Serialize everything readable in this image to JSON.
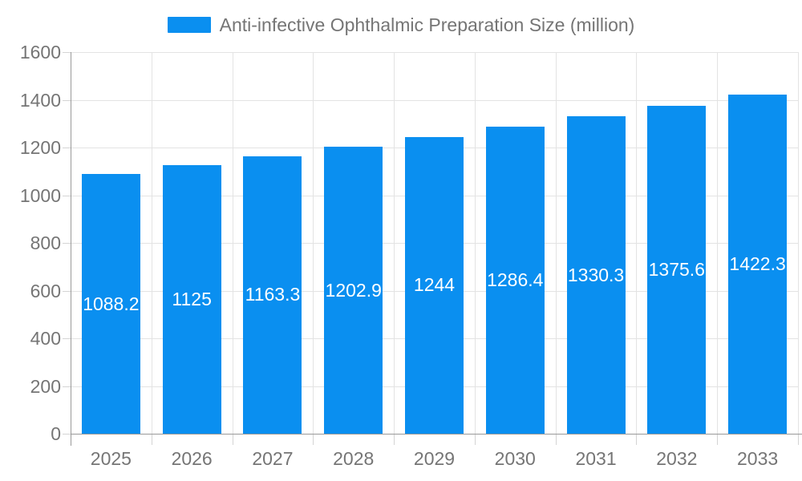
{
  "chart_data": {
    "type": "bar",
    "title": "Anti-infective Ophthalmic Preparation Size (million)",
    "legend": [
      "Anti-infective Ophthalmic Preparation Size (million)"
    ],
    "legend_position": "top-center",
    "categories": [
      "2025",
      "2026",
      "2027",
      "2028",
      "2029",
      "2030",
      "2031",
      "2032",
      "2033"
    ],
    "values": [
      1088.2,
      1125,
      1163.3,
      1202.9,
      1244,
      1286.4,
      1330.3,
      1375.6,
      1422.3
    ],
    "value_labels": [
      "1088.2",
      "1125",
      "1163.3",
      "1202.9",
      "1244",
      "1286.4",
      "1330.3",
      "1375.6",
      "1422.3"
    ],
    "value_label_position": "inside-center",
    "xlabel": "",
    "ylabel": "",
    "ylim": [
      0,
      1600
    ],
    "yticks": [
      0,
      200,
      400,
      600,
      800,
      1000,
      1200,
      1400,
      1600
    ],
    "grid": true
  },
  "colors": {
    "bar": "#0A8FF0",
    "grid": "#E3E3E3",
    "axis": "#999999",
    "tick": "#D4D4D4",
    "label_text": "#757575",
    "bar_label_text": "#FFFFFF",
    "background": "#FFFFFF"
  }
}
